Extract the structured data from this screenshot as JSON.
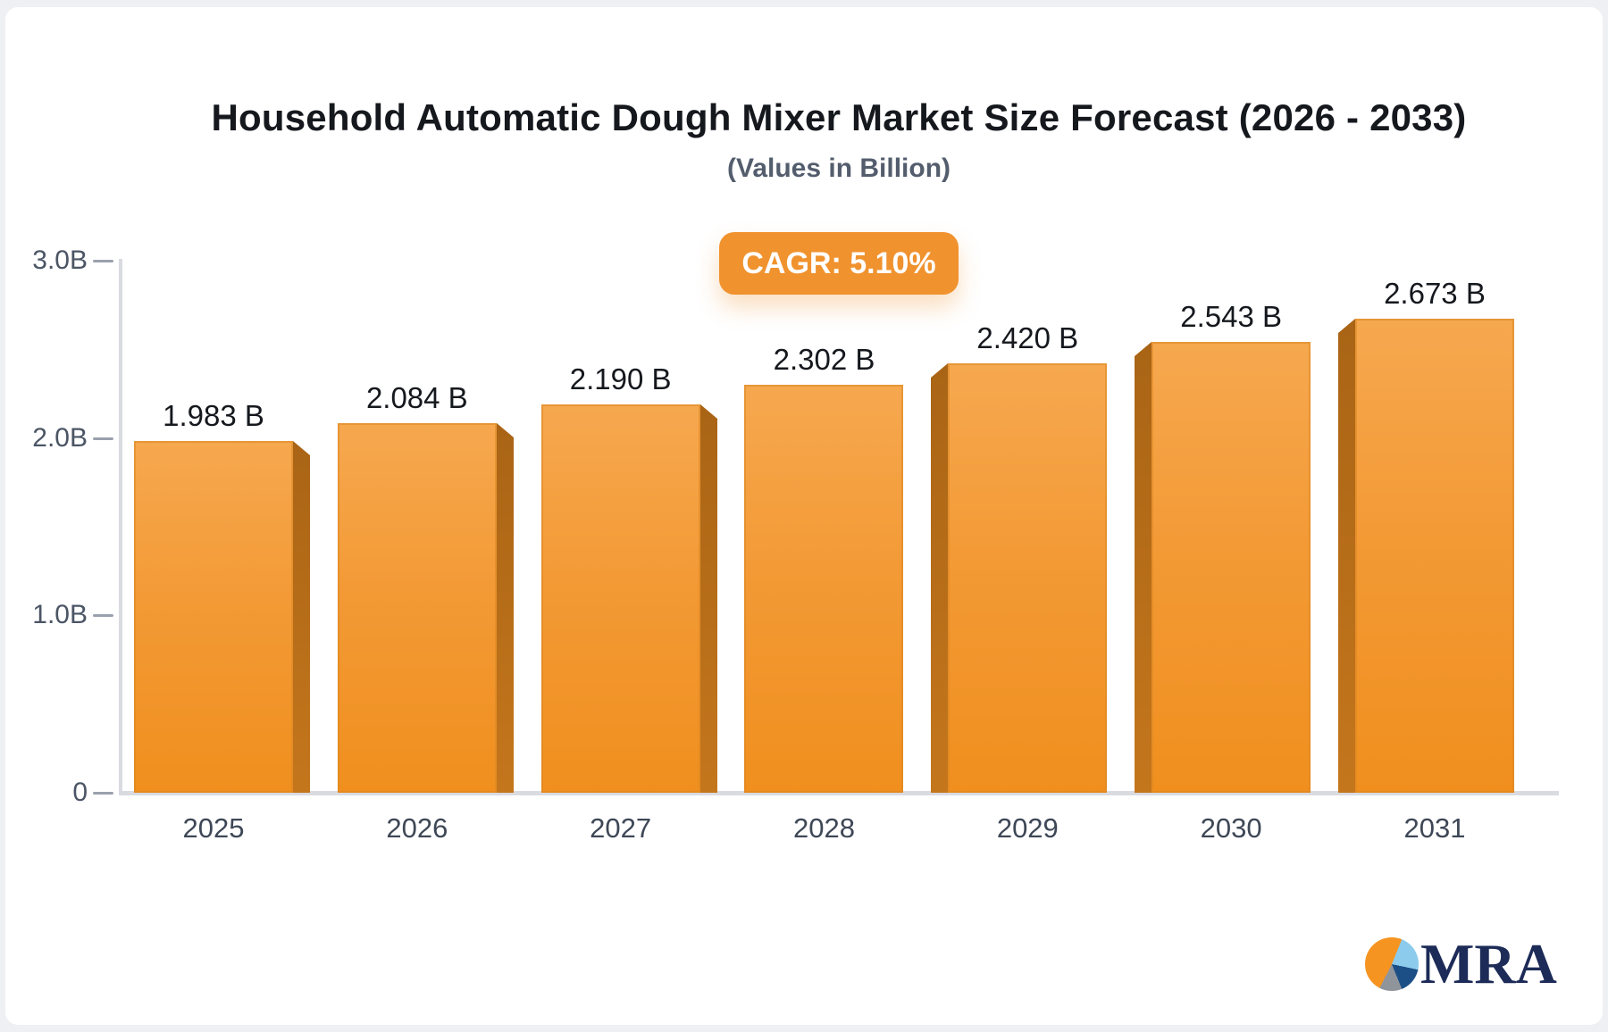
{
  "page": {
    "background": "#eef0f3",
    "card_background": "#ffffff"
  },
  "header": {
    "title": "Household Automatic Dough Mixer Market Size Forecast (2026 - 2033)",
    "subtitle": "(Values in Billion)"
  },
  "cagr_badge": {
    "label": "CAGR: 5.10%",
    "background": "#f0922e",
    "text_color": "#ffffff"
  },
  "chart_data": {
    "type": "bar",
    "categories": [
      "2025",
      "2026",
      "2027",
      "2028",
      "2029",
      "2030",
      "2031"
    ],
    "values": [
      1.983,
      2.084,
      2.19,
      2.302,
      2.42,
      2.543,
      2.673
    ],
    "bar_labels": [
      "1.983 B",
      "2.084 B",
      "2.190 B",
      "2.302 B",
      "2.420 B",
      "2.543 B",
      "2.673 B"
    ],
    "series_unit": "Billion",
    "title": "Household Automatic Dough Mixer Market Size Forecast (2026 - 2033)",
    "xlabel": "",
    "ylabel": "",
    "ylim": [
      0,
      3
    ],
    "y_ticks": [
      {
        "label": "0",
        "value": 0
      },
      {
        "label": "1.0B",
        "value": 1
      },
      {
        "label": "2.0B",
        "value": 2
      },
      {
        "label": "3.0B",
        "value": 3
      }
    ],
    "grid": false,
    "legend": false,
    "bar_color_top": "#f6a84f",
    "bar_color_bottom": "#f08f1e",
    "bar_side_color": "#b86e1c"
  },
  "footer_logo": {
    "text": "MRA"
  }
}
